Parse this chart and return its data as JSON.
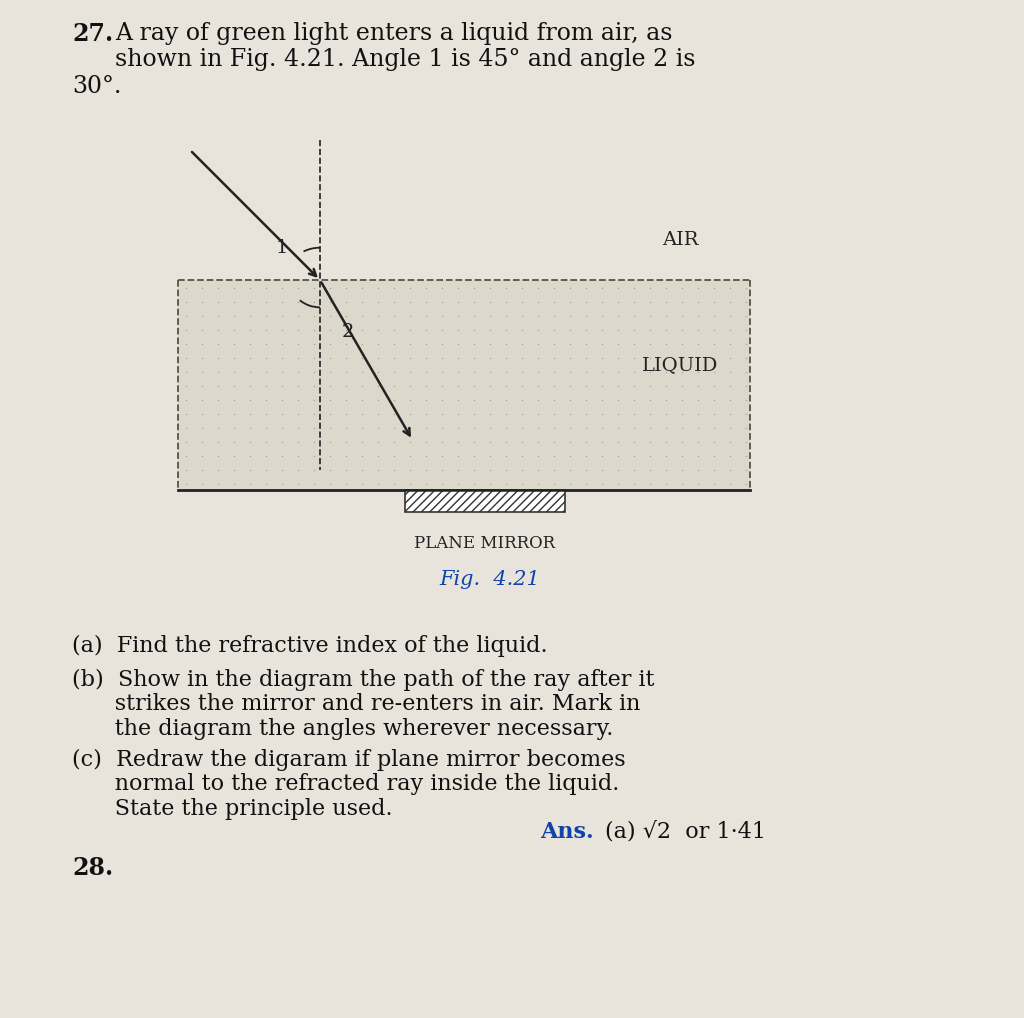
{
  "bg_color": "#e8e4dc",
  "text_color": "#111111",
  "question_number": "27.",
  "question_text_line1": "A ray of green light enters a liquid from air, as",
  "question_text_line2": "shown in Fig. 4.21. Angle 1 is 45° and angle 2 is",
  "question_text_line3": "30°.",
  "fig_caption": "Fig.  4.21",
  "part_a": "(a)  Find the refractive index of the liquid.",
  "part_b_line1": "(b)  Show in the diagram the path of the ray after it",
  "part_b_line2": "      strikes the mirror and re-enters in air. Mark in",
  "part_b_line3": "      the diagram the angles wherever necessary.",
  "part_c_line1": "(c)  Redraw the digaram if plane mirror becomes",
  "part_c_line2": "      normal to the refracted ray inside the liquid.",
  "part_c_line3": "      State the principle used.",
  "ans_label": "Ans.",
  "ans_text": "(a) √2  or 1·41",
  "label_air": "AIR",
  "label_liquid": "LIQUID",
  "label_mirror": "PLANE MIRROR",
  "angle1_label": "1",
  "angle2_label": "2",
  "dot_color": "#b0a898",
  "line_color": "#222222",
  "hatch_color": "#333333",
  "box_facecolor": "#ddd8cc"
}
